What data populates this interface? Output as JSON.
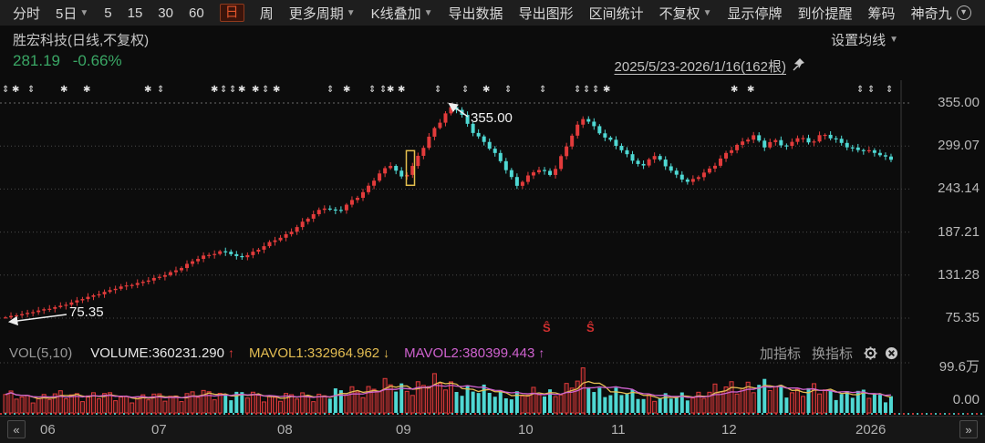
{
  "toolbar": {
    "items": [
      {
        "label": "分时"
      },
      {
        "label": "5日",
        "chevron": true
      },
      {
        "label": "5"
      },
      {
        "label": "15"
      },
      {
        "label": "30"
      },
      {
        "label": "60"
      },
      {
        "label": "日",
        "active": true
      },
      {
        "label": "周"
      },
      {
        "label": "更多周期",
        "chevron": true
      },
      {
        "label": "K线叠加",
        "chevron": true
      },
      {
        "label": "导出数据"
      },
      {
        "label": "导出图形"
      },
      {
        "label": "区间统计"
      },
      {
        "label": "不复权",
        "chevron": true
      },
      {
        "label": "显示停牌"
      },
      {
        "label": "到价提醒"
      },
      {
        "label": "筹码"
      },
      {
        "label": "神奇九",
        "circle_icon": true
      }
    ]
  },
  "header": {
    "title": "胜宏科技(日线,不复权)",
    "price": "281.19",
    "change": "-0.66%",
    "ma_settings": "设置均线",
    "date_range": "2025/5/23-2026/1/16(162根)"
  },
  "price_axis": {
    "labels": [
      "355.00",
      "299.07",
      "243.14",
      "187.21",
      "131.28",
      "75.35"
    ]
  },
  "volume_pane": {
    "indicator": "VOL(5,10)",
    "volume": "VOLUME:360231.290",
    "volume_arrow": "↑",
    "mavol1": "MAVOL1:332964.962",
    "mavol1_arrow": "↓",
    "mavol2": "MAVOL2:380399.443",
    "mavol2_arrow": "↑",
    "add_indicator": "加指标",
    "switch_indicator": "换指标",
    "y_top": "99.6万",
    "y_bottom": "0.00"
  },
  "x_axis": {
    "prev": "«",
    "next": "»",
    "months": [
      [
        52,
        "06"
      ],
      [
        174,
        "07"
      ],
      [
        312,
        "08"
      ],
      [
        442,
        "09"
      ],
      [
        576,
        "10"
      ],
      [
        678,
        "11"
      ],
      [
        799,
        "12"
      ],
      [
        946,
        "2026"
      ]
    ]
  },
  "annotations": {
    "peak_label": "355.00",
    "start_label": "75.35",
    "signal_glyph": "Ŝ",
    "signal_x": [
      600,
      648
    ]
  },
  "markers": {
    "glyphs": {
      "ud": "⇕",
      "st": "✱"
    },
    "items": [
      [
        6,
        "ud"
      ],
      [
        17,
        "st"
      ],
      [
        34,
        "ud"
      ],
      [
        70,
        "st"
      ],
      [
        95,
        "st"
      ],
      [
        162,
        "st"
      ],
      [
        176,
        "ud"
      ],
      [
        235,
        "st"
      ],
      [
        245,
        "ud"
      ],
      [
        255,
        "ud"
      ],
      [
        265,
        "st"
      ],
      [
        280,
        "st"
      ],
      [
        291,
        "ud"
      ],
      [
        303,
        "st"
      ],
      [
        362,
        "ud"
      ],
      [
        380,
        "st"
      ],
      [
        408,
        "ud"
      ],
      [
        420,
        "ud"
      ],
      [
        428,
        "st"
      ],
      [
        440,
        "st"
      ],
      [
        480,
        "ud"
      ],
      [
        510,
        "ud"
      ],
      [
        533,
        "st"
      ],
      [
        557,
        "ud"
      ],
      [
        595,
        "ud"
      ],
      [
        633,
        "ud"
      ],
      [
        643,
        "ud"
      ],
      [
        653,
        "ud"
      ],
      [
        665,
        "st"
      ],
      [
        805,
        "st"
      ],
      [
        823,
        "st"
      ],
      [
        943,
        "ud"
      ],
      [
        955,
        "ud"
      ],
      [
        975,
        "ud"
      ]
    ]
  },
  "colors": {
    "up": "#e23b3b",
    "down": "#4fd8d3",
    "mavol1": "#e3bd52",
    "mavol2": "#cf62cf",
    "green": "#3aa765",
    "active": "#e0542b",
    "grid": "#4a4a4a",
    "axis": "#3a3a3a",
    "annotation": "#ededed",
    "highlight": "#e5c04e",
    "signal": "#cf2f2f"
  },
  "chart_data": {
    "type": "candlestick+volume",
    "title": "胜宏科技",
    "period": "日线",
    "adjustment": "不复权",
    "bars": 162,
    "date_range": [
      "2025/5/23",
      "2026/1/16"
    ],
    "last_close": 281.19,
    "change_pct": -0.66,
    "peak_price": 355.0,
    "start_low": 75.35,
    "y_ticks": [
      355.0,
      299.07,
      243.14,
      187.21,
      131.28,
      75.35
    ],
    "price_range": [
      75.35,
      355.0
    ],
    "x_months": [
      "06",
      "07",
      "08",
      "09",
      "10",
      "11",
      "12",
      "2026"
    ],
    "volume_stats": {
      "current": 360231.29,
      "mavol1": 332964.962,
      "mavol2": 380399.443,
      "axis_max_label": "99.6万",
      "axis_min_label": "0.00"
    },
    "price_anchors": [
      [
        4,
        75.35
      ],
      [
        20,
        80
      ],
      [
        52,
        87
      ],
      [
        80,
        96
      ],
      [
        110,
        108
      ],
      [
        140,
        118
      ],
      [
        174,
        128
      ],
      [
        200,
        142
      ],
      [
        225,
        157
      ],
      [
        245,
        163
      ],
      [
        262,
        153
      ],
      [
        285,
        166
      ],
      [
        312,
        183
      ],
      [
        335,
        202
      ],
      [
        355,
        220
      ],
      [
        372,
        214
      ],
      [
        395,
        236
      ],
      [
        412,
        258
      ],
      [
        428,
        274
      ],
      [
        442,
        258
      ],
      [
        452,
        272
      ],
      [
        465,
        298
      ],
      [
        478,
        326
      ],
      [
        490,
        344
      ],
      [
        497,
        352
      ],
      [
        507,
        336
      ],
      [
        517,
        320
      ],
      [
        532,
        304
      ],
      [
        547,
        281
      ],
      [
        560,
        260
      ],
      [
        566,
        248
      ],
      [
        576,
        257
      ],
      [
        590,
        268
      ],
      [
        605,
        262
      ],
      [
        618,
        292
      ],
      [
        630,
        318
      ],
      [
        641,
        338
      ],
      [
        652,
        324
      ],
      [
        665,
        308
      ],
      [
        678,
        297
      ],
      [
        692,
        284
      ],
      [
        705,
        271
      ],
      [
        715,
        287
      ],
      [
        728,
        277
      ],
      [
        742,
        261
      ],
      [
        755,
        250
      ],
      [
        768,
        262
      ],
      [
        785,
        276
      ],
      [
        799,
        291
      ],
      [
        812,
        304
      ],
      [
        825,
        314
      ],
      [
        838,
        297
      ],
      [
        850,
        307
      ],
      [
        862,
        299
      ],
      [
        875,
        310
      ],
      [
        888,
        302
      ],
      [
        902,
        317
      ],
      [
        915,
        307
      ],
      [
        930,
        297
      ],
      [
        946,
        295
      ],
      [
        960,
        289
      ],
      [
        972,
        283
      ],
      [
        981,
        281.19
      ]
    ],
    "volume_anchors": [
      [
        0,
        0.34
      ],
      [
        40,
        0.3
      ],
      [
        80,
        0.36
      ],
      [
        120,
        0.32
      ],
      [
        160,
        0.3
      ],
      [
        200,
        0.34
      ],
      [
        240,
        0.38
      ],
      [
        280,
        0.33
      ],
      [
        320,
        0.31
      ],
      [
        360,
        0.36
      ],
      [
        395,
        0.45
      ],
      [
        420,
        0.52
      ],
      [
        445,
        0.48
      ],
      [
        470,
        0.6
      ],
      [
        495,
        0.52
      ],
      [
        520,
        0.44
      ],
      [
        545,
        0.38
      ],
      [
        570,
        0.35
      ],
      [
        600,
        0.4
      ],
      [
        625,
        0.48
      ],
      [
        637,
        0.7
      ],
      [
        655,
        0.45
      ],
      [
        680,
        0.38
      ],
      [
        705,
        0.33
      ],
      [
        730,
        0.3
      ],
      [
        755,
        0.33
      ],
      [
        780,
        0.42
      ],
      [
        800,
        0.5
      ],
      [
        815,
        0.56
      ],
      [
        835,
        0.52
      ],
      [
        855,
        0.48
      ],
      [
        875,
        0.42
      ],
      [
        895,
        0.45
      ],
      [
        915,
        0.4
      ],
      [
        935,
        0.38
      ],
      [
        955,
        0.35
      ],
      [
        975,
        0.33
      ]
    ],
    "highlight_candle": {
      "x": 450,
      "price_top": 293,
      "price_bottom": 248
    }
  }
}
